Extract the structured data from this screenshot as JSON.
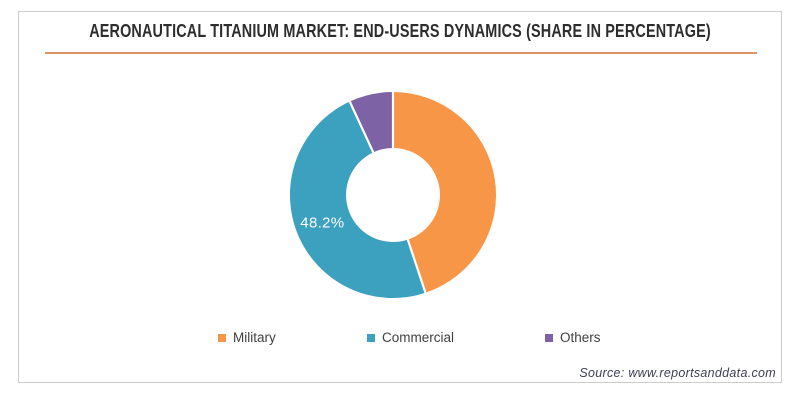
{
  "chart_data": {
    "type": "pie",
    "subtype": "donut",
    "title": "AERONAUTICAL TITANIUM MARKET: END-USERS DYNAMICS (SHARE IN PERCENTAGE)",
    "categories": [
      "Military",
      "Commercial",
      "Others"
    ],
    "values": [
      44.9,
      48.2,
      6.9
    ],
    "colors": [
      "#F79646",
      "#3CA0BF",
      "#7D63A6"
    ],
    "start_angle_deg": 0,
    "direction": "clockwise",
    "inner_radius_ratio": 0.46,
    "legend_position": "bottom",
    "data_label": {
      "segment_index": 1,
      "text": "48.2%"
    }
  },
  "legend": {
    "items": [
      {
        "label": "Military",
        "color": "#F79646"
      },
      {
        "label": "Commercial",
        "color": "#3CA0BF"
      },
      {
        "label": "Others",
        "color": "#7D63A6"
      }
    ]
  },
  "footer": {
    "source": "Source: www.reportsanddata.com"
  },
  "styles": {
    "accent_underline": "#DB9260",
    "frame_border": "#CDCDCD",
    "title_color": "#2D2D2D",
    "legend_text_color": "#3F3F3F",
    "source_text_color": "#3E3E55",
    "segment_gap_color": "#FFFFFF",
    "data_label_color": "#FFFFFF"
  }
}
